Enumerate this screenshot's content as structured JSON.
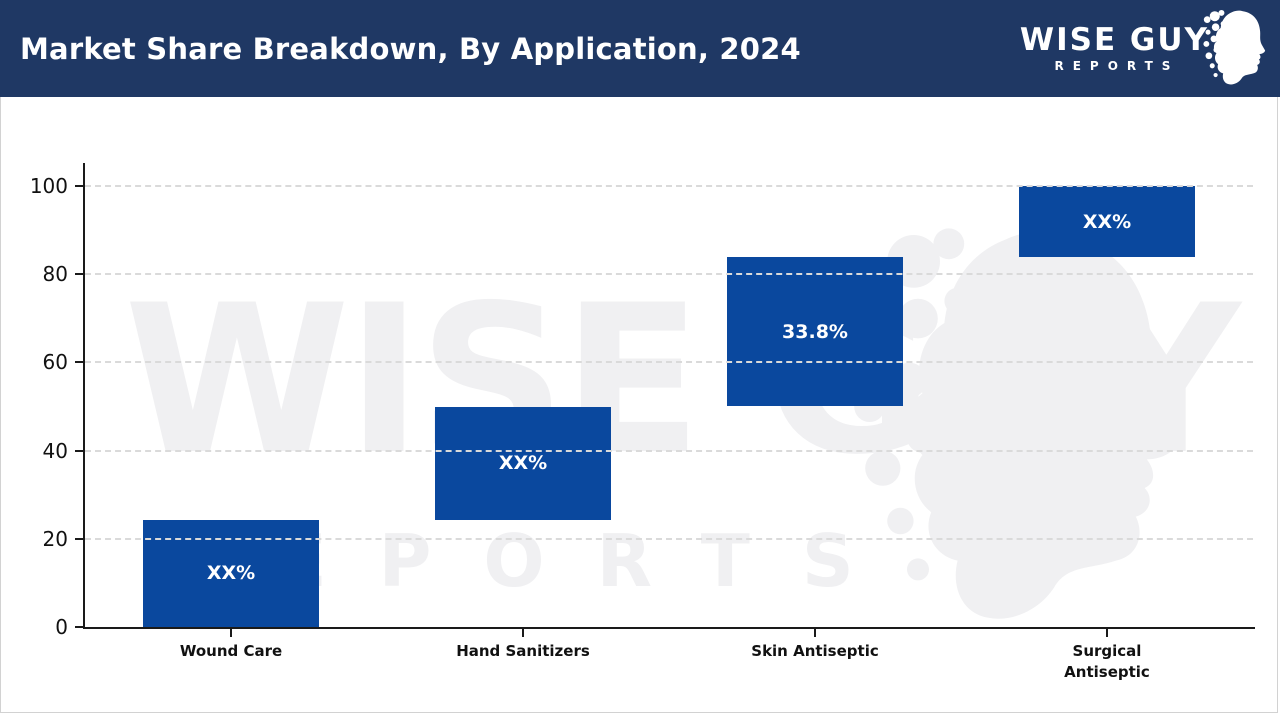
{
  "header": {
    "title": "Market Share Breakdown, By Application, 2024",
    "logo": {
      "line1": "WISE GUY",
      "line2": "REPORTS"
    }
  },
  "watermark": {
    "line1": "WISE GUY",
    "line2": "REPORTS"
  },
  "chart_data": {
    "type": "bar",
    "subtype": "floating-waterfall",
    "title": "Market Share Breakdown, By Application, 2024",
    "categories": [
      "Wound Care",
      "Hand Sanitizers",
      "Skin Antiseptic",
      "Surgical\nAntiseptic"
    ],
    "series": [
      {
        "name": "Market share (%)",
        "segments": [
          {
            "category": "Wound Care",
            "start": 0,
            "end": 24.3,
            "label": "XX%"
          },
          {
            "category": "Hand Sanitizers",
            "start": 24.3,
            "end": 50.0,
            "label": "XX%"
          },
          {
            "category": "Skin Antiseptic",
            "start": 50.0,
            "end": 83.8,
            "label": "33.8%"
          },
          {
            "category": "Surgical Antiseptic",
            "start": 83.8,
            "end": 100,
            "label": "XX%"
          }
        ]
      }
    ],
    "xlabel": "",
    "ylabel": "",
    "ylim": [
      0,
      100
    ],
    "yticks": [
      0,
      20,
      40,
      60,
      80,
      100
    ],
    "grid": "horizontal-dashed, drawn over bars",
    "legend": "none"
  },
  "colors": {
    "header_bg": "#1f3864",
    "bar": "#0a489e",
    "bar_label": "#ffffff",
    "grid": "#dadada",
    "axis": "#1a1a1a",
    "tick_text": "#111111",
    "watermark": "#f0f0f2",
    "page_bg": "#ffffff",
    "frame_border": "#d2d2d2"
  }
}
